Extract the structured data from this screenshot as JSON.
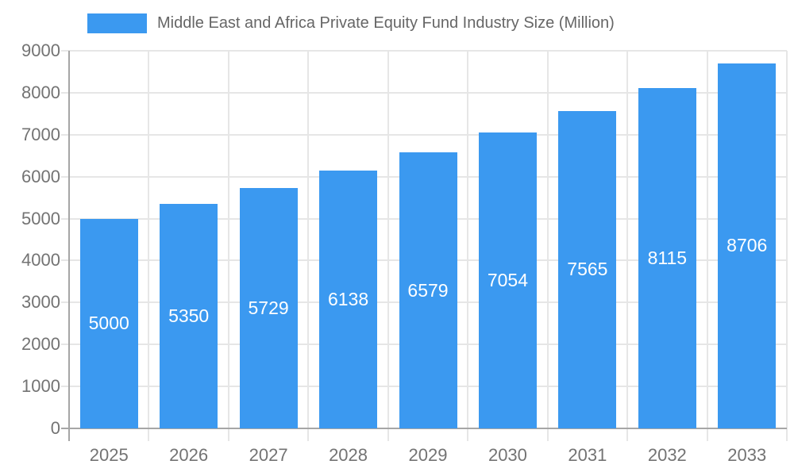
{
  "chart_data": {
    "type": "bar",
    "title": "Middle East and Africa Private Equity Fund Industry Size (Million)",
    "categories": [
      "2025",
      "2026",
      "2027",
      "2028",
      "2029",
      "2030",
      "2031",
      "2032",
      "2033"
    ],
    "values": [
      5000,
      5350,
      5729,
      6138,
      6579,
      7054,
      7565,
      8115,
      8706
    ],
    "xlabel": "",
    "ylabel": "",
    "ylim": [
      0,
      9000
    ],
    "ytick_step": 1000,
    "ytick_labels": [
      "0",
      "1000",
      "2000",
      "3000",
      "4000",
      "5000",
      "6000",
      "7000",
      "8000",
      "9000"
    ],
    "grid": true,
    "legend_position": "top",
    "colors": {
      "bar": "#3B99F0",
      "bar_value_label": "#FFFFFF",
      "gridline": "#E6E6E6",
      "axis_line": "#A6A6A6",
      "axis_tick_text": "#737373",
      "legend_text": "#666666",
      "background": "#FFFFFF"
    }
  }
}
